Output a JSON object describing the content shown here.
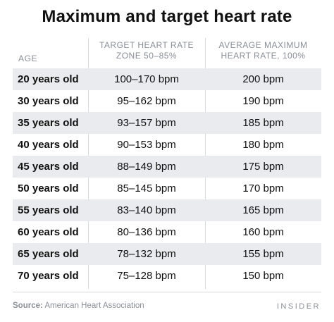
{
  "title": "Maximum and target heart rate",
  "headers": {
    "age": "AGE",
    "zone_line1": "TARGET HEART RATE",
    "zone_line2": "ZONE 50–85%",
    "max_line1": "AVERAGE MAXIMUM",
    "max_line2": "HEART RATE, 100%"
  },
  "rows": [
    {
      "age": "20 years old",
      "zone": "100–170 bpm",
      "max": "200 bpm"
    },
    {
      "age": "30 years old",
      "zone": "95–162 bpm",
      "max": "190 bpm"
    },
    {
      "age": "35 years old",
      "zone": "93–157 bpm",
      "max": "185 bpm"
    },
    {
      "age": "40 years old",
      "zone": "90–153 bpm",
      "max": "180 bpm"
    },
    {
      "age": "45 years old",
      "zone": "88–149 bpm",
      "max": "175 bpm"
    },
    {
      "age": "50 years old",
      "zone": "85–145 bpm",
      "max": "170 bpm"
    },
    {
      "age": "55 years old",
      "zone": "83–140 bpm",
      "max": "165 bpm"
    },
    {
      "age": "60 years old",
      "zone": "80–136 bpm",
      "max": "160 bpm"
    },
    {
      "age": "65 years old",
      "zone": "78–132 bpm",
      "max": "155 bpm"
    },
    {
      "age": "70 years old",
      "zone": "75–128 bpm",
      "max": "150 bpm"
    }
  ],
  "footer": {
    "source_label": "Source:",
    "source_text": "American Heart Association",
    "brand": "INSIDER"
  },
  "colors": {
    "shade": "#e9ebee",
    "muted_text": "#8a8f96",
    "divider": "#d9dcdf"
  }
}
